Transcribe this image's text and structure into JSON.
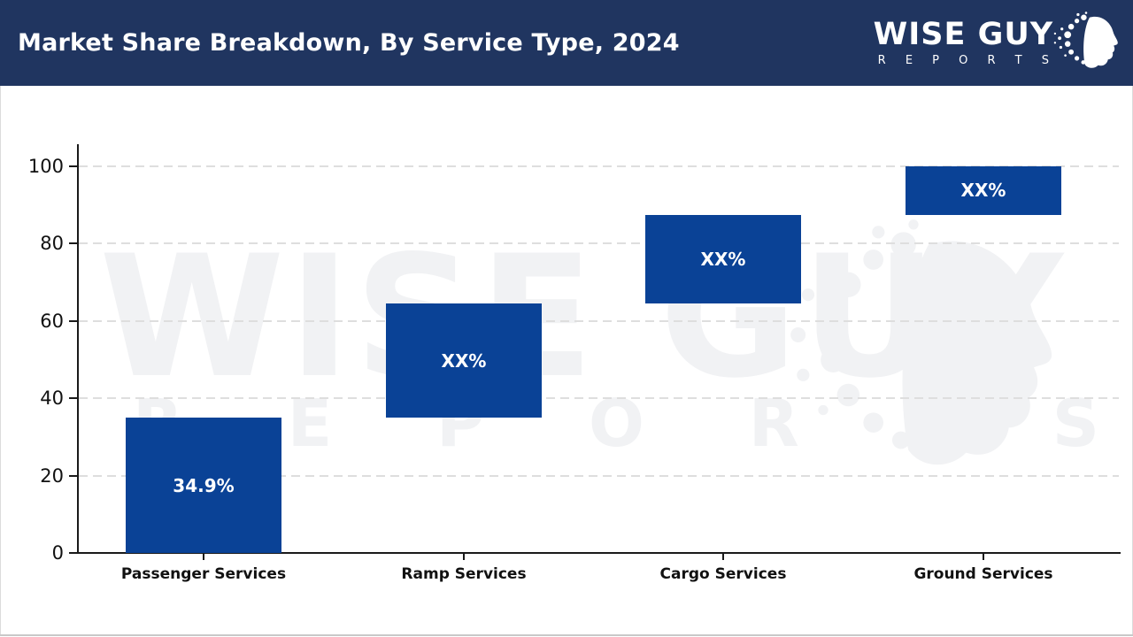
{
  "header": {
    "title": "Market Share Breakdown, By Service Type, 2024",
    "logo": {
      "wordmark": "WISE GUY",
      "subtext": "R E P O R T S"
    }
  },
  "watermark": {
    "wordmark": "WISE GUY",
    "subtext": "R E P O R T S"
  },
  "chart_data": {
    "type": "bar",
    "subtype": "waterfall",
    "title": "Market Share Breakdown, By Service Type, 2024",
    "categories": [
      "Passenger Services",
      "Ramp Services",
      "Cargo Services",
      "Ground Services"
    ],
    "segments": [
      {
        "category": "Passenger Services",
        "start": 0,
        "end": 34.9,
        "value": 34.9,
        "label": "34.9%"
      },
      {
        "category": "Ramp Services",
        "start": 34.9,
        "end": 64.5,
        "value": 29.6,
        "label": "XX%"
      },
      {
        "category": "Cargo Services",
        "start": 64.5,
        "end": 87.5,
        "value": 23.0,
        "label": "XX%"
      },
      {
        "category": "Ground Services",
        "start": 87.5,
        "end": 100,
        "value": 12.5,
        "label": "XX%"
      }
    ],
    "y_ticks": [
      0,
      20,
      40,
      60,
      80,
      100
    ],
    "ylim": [
      0,
      100
    ],
    "xlabel": "",
    "ylabel": "",
    "grid": "horizontal-dashed",
    "legend": "none",
    "bar_color": "#0a4296",
    "bar_label_color": "#ffffff",
    "axis_color": "#1a1a1a",
    "gridline_color": "#dedede"
  },
  "colors": {
    "header_bg": "#203560",
    "header_text": "#ffffff",
    "background": "#ffffff",
    "watermark": "#f1f2f4"
  }
}
